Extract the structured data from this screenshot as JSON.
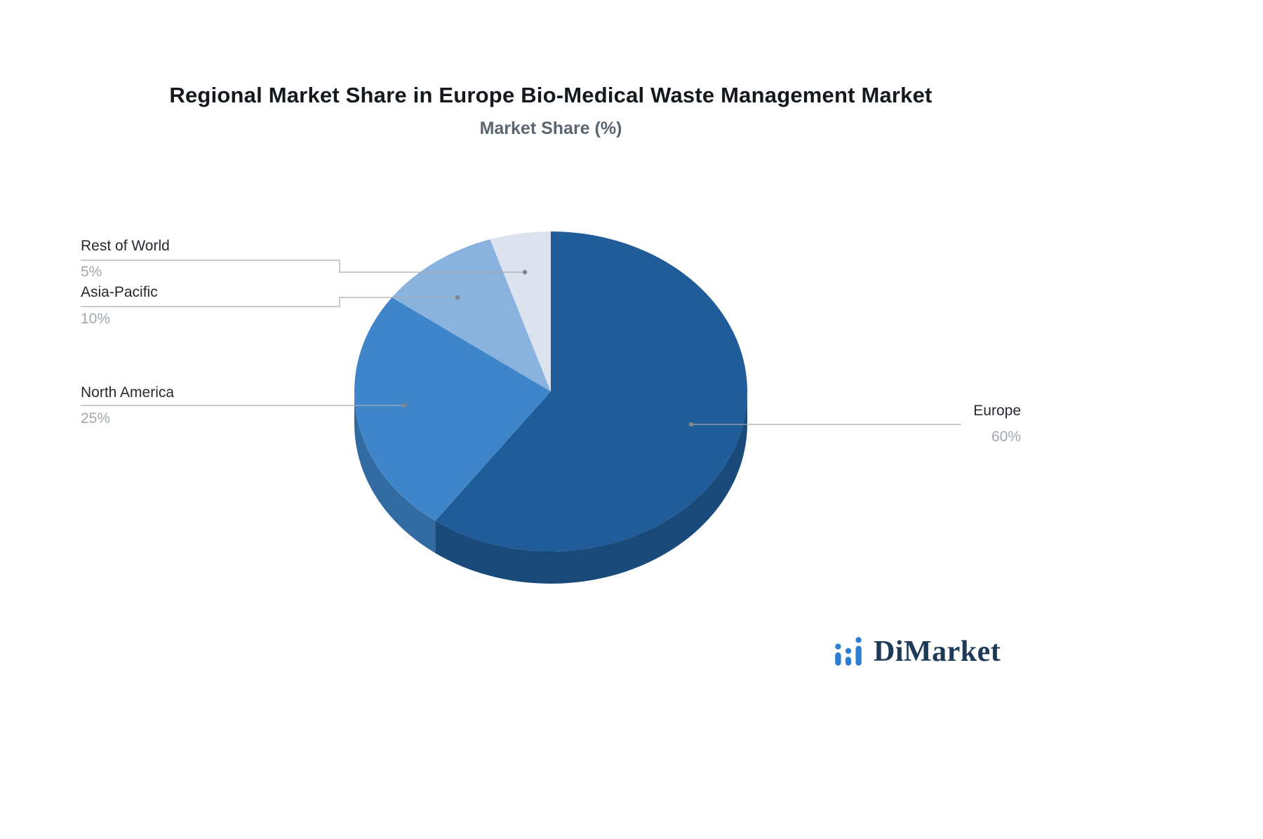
{
  "header": {
    "title": "Regional Market Share in Europe Bio-Medical Waste Management Market",
    "subtitle": "Market Share (%)"
  },
  "chart_data": {
    "type": "pie",
    "title": "Regional Market Share in Europe Bio-Medical Waste Management Market",
    "subtitle": "Market Share (%)",
    "unit": "%",
    "style": "3d",
    "start_angle_deg": 0,
    "direction": "clockwise",
    "legend_position": "none",
    "labels": "leader-line-callouts",
    "slices": [
      {
        "label": "Europe",
        "value": 60,
        "pct_label": "60%",
        "color": "#1F5C99"
      },
      {
        "label": "North America",
        "value": 25,
        "pct_label": "25%",
        "color": "#3E86C9"
      },
      {
        "label": "Asia-Pacific",
        "value": 10,
        "pct_label": "10%",
        "color": "#8AB2DE"
      },
      {
        "label": "Rest of World",
        "value": 5,
        "pct_label": "5%",
        "color": "#DCE3EE"
      }
    ]
  },
  "branding": {
    "logo_text": "DiMarket",
    "logo_text_color": "#1d3b57",
    "logo_icon": "bar-chart-icon",
    "logo_icon_color": "#2E7ED0"
  },
  "colors": {
    "leader_line": "#a6aaaf",
    "leader_dot": "#83878d",
    "pct_text": "#a2a7ae",
    "label_text": "#26292e"
  }
}
